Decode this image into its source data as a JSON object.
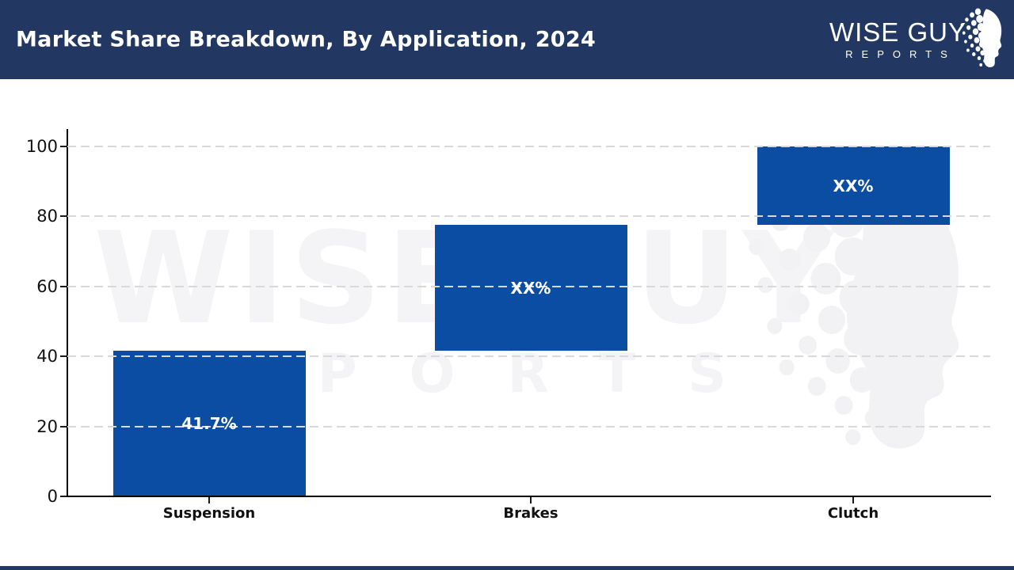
{
  "header": {
    "title": "Market Share Breakdown, By Application, 2024",
    "logo": {
      "line1": "WISE GUY",
      "line2": "REPORTS"
    }
  },
  "watermark": {
    "line1": "WISE GUY",
    "line2": "REPORTS"
  },
  "colors": {
    "header_bg": "#223862",
    "footer_bg": "#223862",
    "bar": "#0b4da2",
    "bar_label": "#ffffff",
    "gridline": "#d9d9d9",
    "axis": "#000000",
    "tick_text": "#111111",
    "title_text": "#ffffff",
    "watermark": "#f4f4f6"
  },
  "chart_data": {
    "type": "bar",
    "subtype": "waterfall-floating-bars",
    "title": "Market Share Breakdown, By Application, 2024",
    "categories": [
      "Suspension",
      "Brakes",
      "Clutch"
    ],
    "segments": [
      {
        "category": "Suspension",
        "start": 0,
        "end": 41.7,
        "value": 41.7,
        "label": "41.7%"
      },
      {
        "category": "Brakes",
        "start": 41.7,
        "end": 77.5,
        "value": 35.8,
        "label": "XX%"
      },
      {
        "category": "Clutch",
        "start": 77.5,
        "end": 100,
        "value": 22.5,
        "label": "XX%"
      }
    ],
    "yticks": [
      0,
      20,
      40,
      60,
      80,
      100
    ],
    "ylim": [
      0,
      105
    ],
    "xlabel": "",
    "ylabel": "",
    "grid": "horizontal-dashed",
    "legend": "none",
    "bar_color": "#0b4da2",
    "bar_label_color": "#ffffff"
  }
}
